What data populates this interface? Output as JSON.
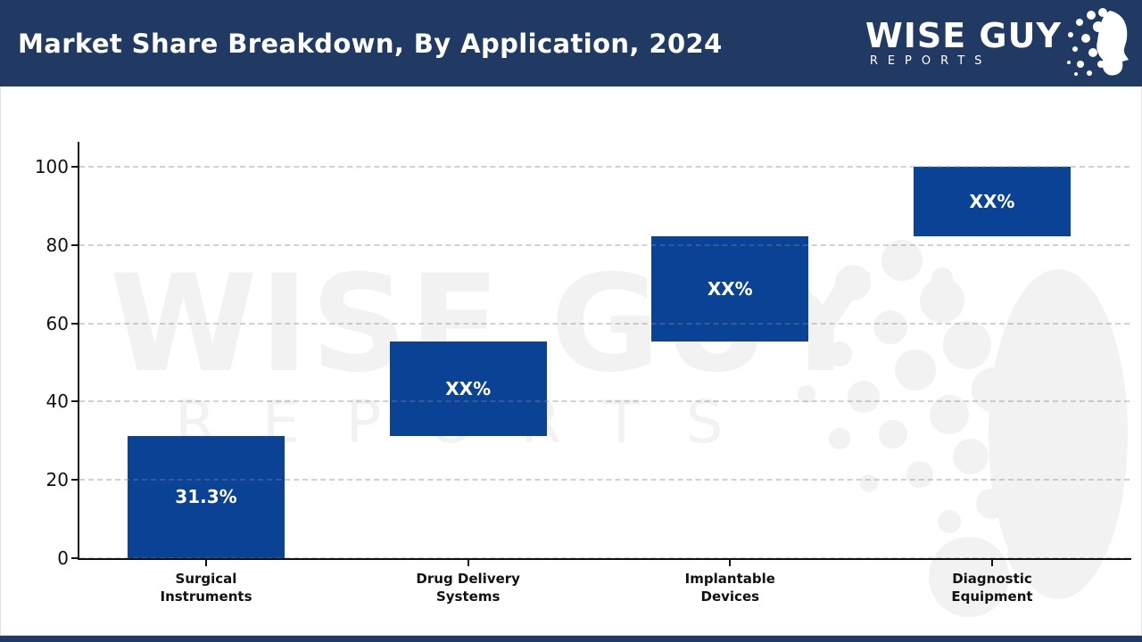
{
  "header": {
    "title": "Market Share Breakdown, By Application, 2024",
    "logo": {
      "line1": "WISE GUY",
      "line2": "REPORTS"
    }
  },
  "watermark": {
    "line1": "WISE GUY",
    "line2": "REPORTS"
  },
  "theme": {
    "header_bg": "#203a64",
    "footer_bg": "#203a64",
    "bar_color": "#0a4296",
    "watermark_color": "#f2f2f2"
  },
  "chart_data": {
    "type": "bar",
    "variant": "waterfall",
    "title": "Market Share Breakdown, By Application, 2024",
    "categories": [
      "Surgical Instruments",
      "Drug Delivery Systems",
      "Implantable Devices",
      "Diagnostic Equipment"
    ],
    "category_tick_lines": [
      [
        "Surgical",
        "Instruments"
      ],
      [
        "Drug Delivery",
        "Systems"
      ],
      [
        "Implantable",
        "Devices"
      ],
      [
        "Diagnostic",
        "Equipment"
      ]
    ],
    "segments": [
      {
        "category": "Surgical Instruments",
        "start": 0,
        "end": 31.3,
        "label": "31.3%"
      },
      {
        "category": "Drug Delivery Systems",
        "start": 31.3,
        "end": 55.3,
        "label": "XX%"
      },
      {
        "category": "Implantable Devices",
        "start": 55.3,
        "end": 82.2,
        "label": "XX%"
      },
      {
        "category": "Diagnostic Equipment",
        "start": 82.2,
        "end": 100,
        "label": "XX%"
      }
    ],
    "ylim": [
      0,
      105
    ],
    "yticks": [
      0,
      20,
      40,
      60,
      80,
      100
    ],
    "xlabel": "",
    "ylabel": "",
    "grid": {
      "horizontal": true,
      "style": "dashed",
      "above_bars": true
    },
    "legend": "none",
    "bar_color": "#0a4296"
  }
}
